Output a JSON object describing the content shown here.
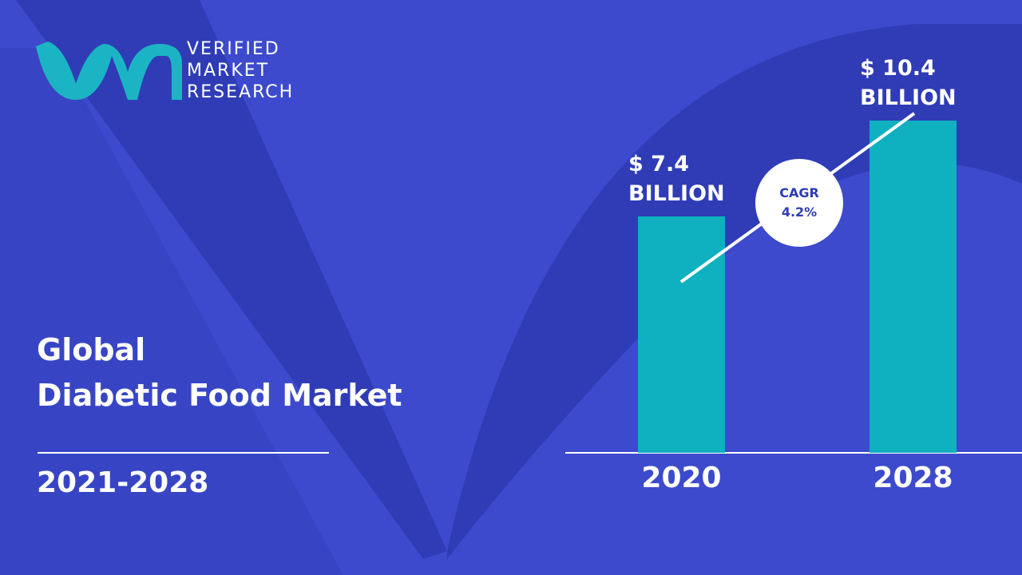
{
  "brand": {
    "lines": [
      "VERIFIED",
      "MARKET",
      "RESEARCH"
    ]
  },
  "header": {
    "title_lines": [
      "Global",
      "Diabetic Food Market"
    ],
    "period": "2021-2028"
  },
  "chart_data": {
    "type": "bar",
    "categories": [
      "2020",
      "2028"
    ],
    "values": [
      7.4,
      10.4
    ],
    "value_labels": [
      "$ 7.4 BILLION",
      "$ 10.4 BILLION"
    ],
    "color": "#0fb0c0",
    "annotations": [
      "CAGR",
      "4.2%"
    ]
  }
}
